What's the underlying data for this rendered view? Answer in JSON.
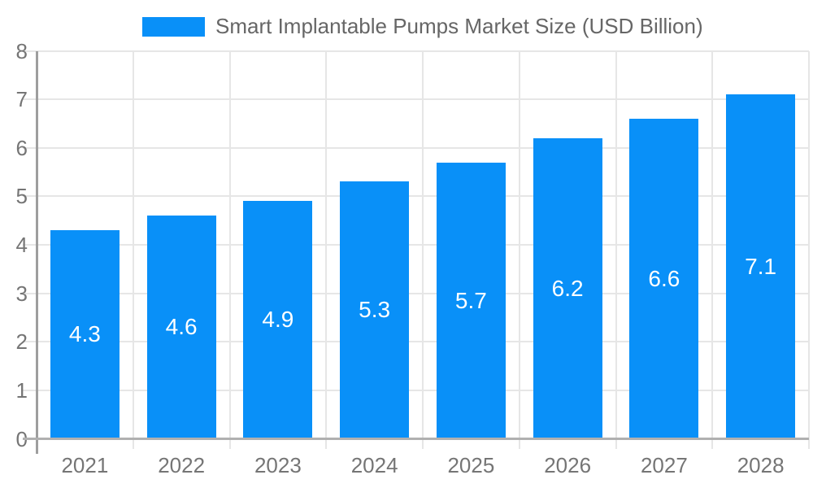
{
  "chart_data": {
    "type": "bar",
    "title": "Smart Implantable Pumps Market Size (USD Billion)",
    "categories": [
      "2021",
      "2022",
      "2023",
      "2024",
      "2025",
      "2026",
      "2027",
      "2028"
    ],
    "values": [
      4.3,
      4.6,
      4.9,
      5.3,
      5.7,
      6.2,
      6.6,
      7.1
    ],
    "xlabel": "",
    "ylabel": "",
    "ylim": [
      0,
      8
    ],
    "yticks": [
      0,
      1,
      2,
      3,
      4,
      5,
      6,
      7,
      8
    ],
    "grid": true,
    "legend_position": "top-center",
    "colors": {
      "bar": "#0990f8",
      "bar_label": "#ffffff",
      "axis_label": "#757575",
      "legend_text": "#666666",
      "gridline": "#e6e6e6",
      "axis_line": "#9e9e9e",
      "baseline": "#b0b0b0",
      "background": "#ffffff"
    }
  }
}
